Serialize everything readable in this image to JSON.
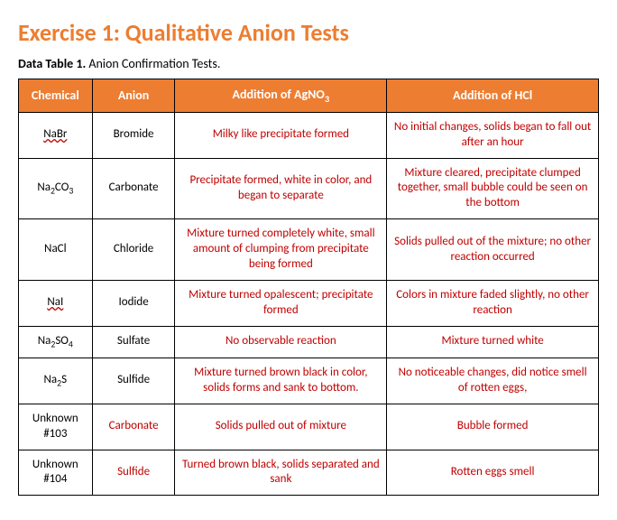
{
  "title": "Exercise 1: Qualitative Anion Tests",
  "caption_bold": "Data Table 1.",
  "caption_rest": " Anion Confirmation Tests.",
  "colors": {
    "accent": "#ed7d31",
    "header_text": "#ffffff",
    "observation_text": "#c00000",
    "body_text": "#000000",
    "border": "#000000",
    "background": "#ffffff"
  },
  "columns": {
    "c1": "Chemical",
    "c2": "Anion",
    "c3_prefix": "Addition of AgNO",
    "c3_sub": "3",
    "c4": "Addition of HCl"
  },
  "rows": [
    {
      "chem_html": "<span class=\"squiggle\">NaBr</span>",
      "anion": "Bromide",
      "anion_red": false,
      "agno3": "Milky like precipitate formed",
      "hcl": "No initial changes, solids began to fall out after an hour"
    },
    {
      "chem_html": "Na<sub>2</sub>CO<sub>3</sub>",
      "anion": "Carbonate",
      "anion_red": false,
      "agno3": "Precipitate formed, white in color, and began to separate",
      "hcl": "Mixture cleared, precipitate clumped together, small bubble could be seen on the bottom"
    },
    {
      "chem_html": "NaCl",
      "anion": "Chloride",
      "anion_red": false,
      "agno3": "Mixture turned completely white, small amount of clumping from precipitate being formed",
      "hcl": "Solids pulled out of the mixture; no other reaction occurred"
    },
    {
      "chem_html": "<span class=\"squiggle\">NaI</span>",
      "anion": "Iodide",
      "anion_red": false,
      "agno3": "Mixture turned opalescent; precipitate formed",
      "hcl": "Colors in mixture faded slightly, no other reaction"
    },
    {
      "chem_html": "Na<sub>2</sub>SO<sub>4</sub>",
      "anion": "Sulfate",
      "anion_red": false,
      "agno3": "No observable reaction",
      "hcl": "Mixture turned white"
    },
    {
      "chem_html": "Na<sub>2</sub>S",
      "anion": "Sulfide",
      "anion_red": false,
      "agno3": "Mixture turned brown black in color, solids forms and sank to bottom.",
      "hcl": "No noticeable changes, did notice smell of rotten eggs,"
    },
    {
      "chem_html": "Unknown #103",
      "anion": "Carbonate",
      "anion_red": true,
      "agno3": "Solids pulled out of mixture",
      "hcl": "Bubble formed"
    },
    {
      "chem_html": "Unknown #104",
      "anion": "Sulfide",
      "anion_red": true,
      "agno3": "Turned brown black, solids separated and sank",
      "hcl": "Rotten eggs smell"
    }
  ]
}
